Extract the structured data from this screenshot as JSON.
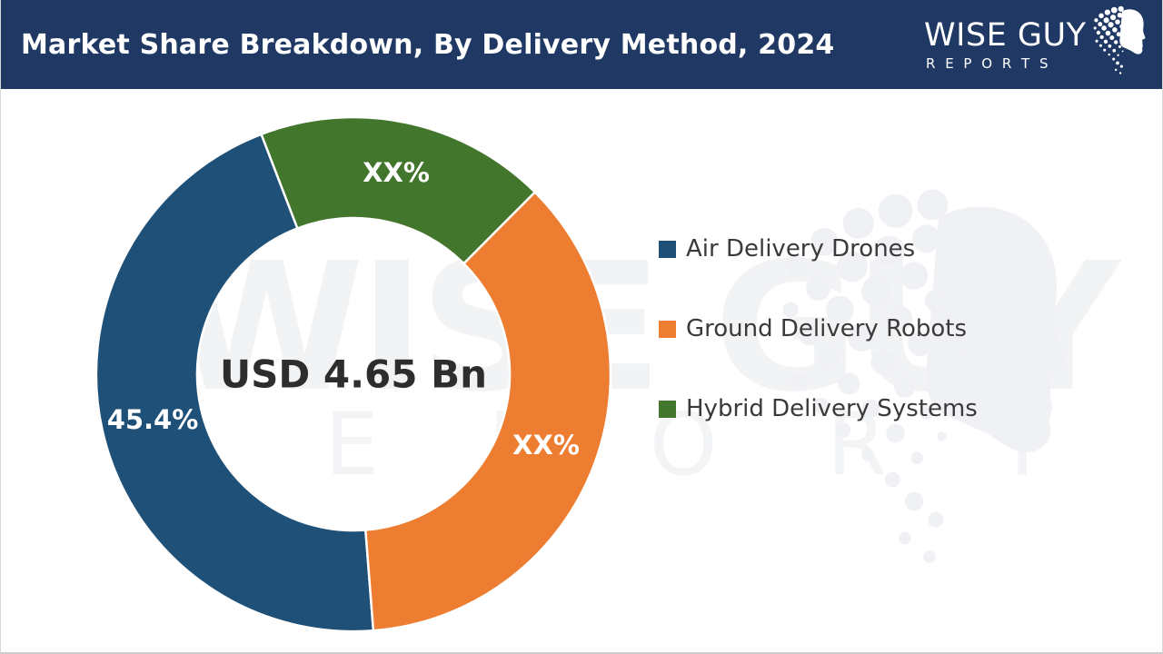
{
  "header": {
    "title": "Market Share Breakdown, By Delivery Method, 2024",
    "logo": {
      "line1": "WISE GUY",
      "line2": "R E P O R T S"
    }
  },
  "chart_data": {
    "type": "pie",
    "subtype": "donut",
    "center_label": "USD 4.65 Bn",
    "start_angle": 111,
    "direction": "counterclockwise",
    "inner_radius_ratio": 0.608,
    "legend_position": "right",
    "series": [
      {
        "name": "Air Delivery Drones",
        "value": 45.4,
        "label": "45.4%",
        "color": "#1f5077"
      },
      {
        "name": "Ground Delivery Robots",
        "value": 36.3,
        "label": "XX%",
        "color": "#ed7d31"
      },
      {
        "name": "Hybrid Delivery Systems",
        "value": 18.3,
        "label": "XX%",
        "color": "#42762c"
      }
    ]
  },
  "watermark": {
    "line1": "WISE GUY",
    "line2": "R E P O R T S"
  },
  "colors": {
    "header_bg": "#1f3864",
    "title_text": "#ffffff",
    "segment_label_text": "#ffffff",
    "center_text": "#2d2d2d",
    "legend_text": "#3a3a3a",
    "watermark": "#f2f3f5"
  }
}
